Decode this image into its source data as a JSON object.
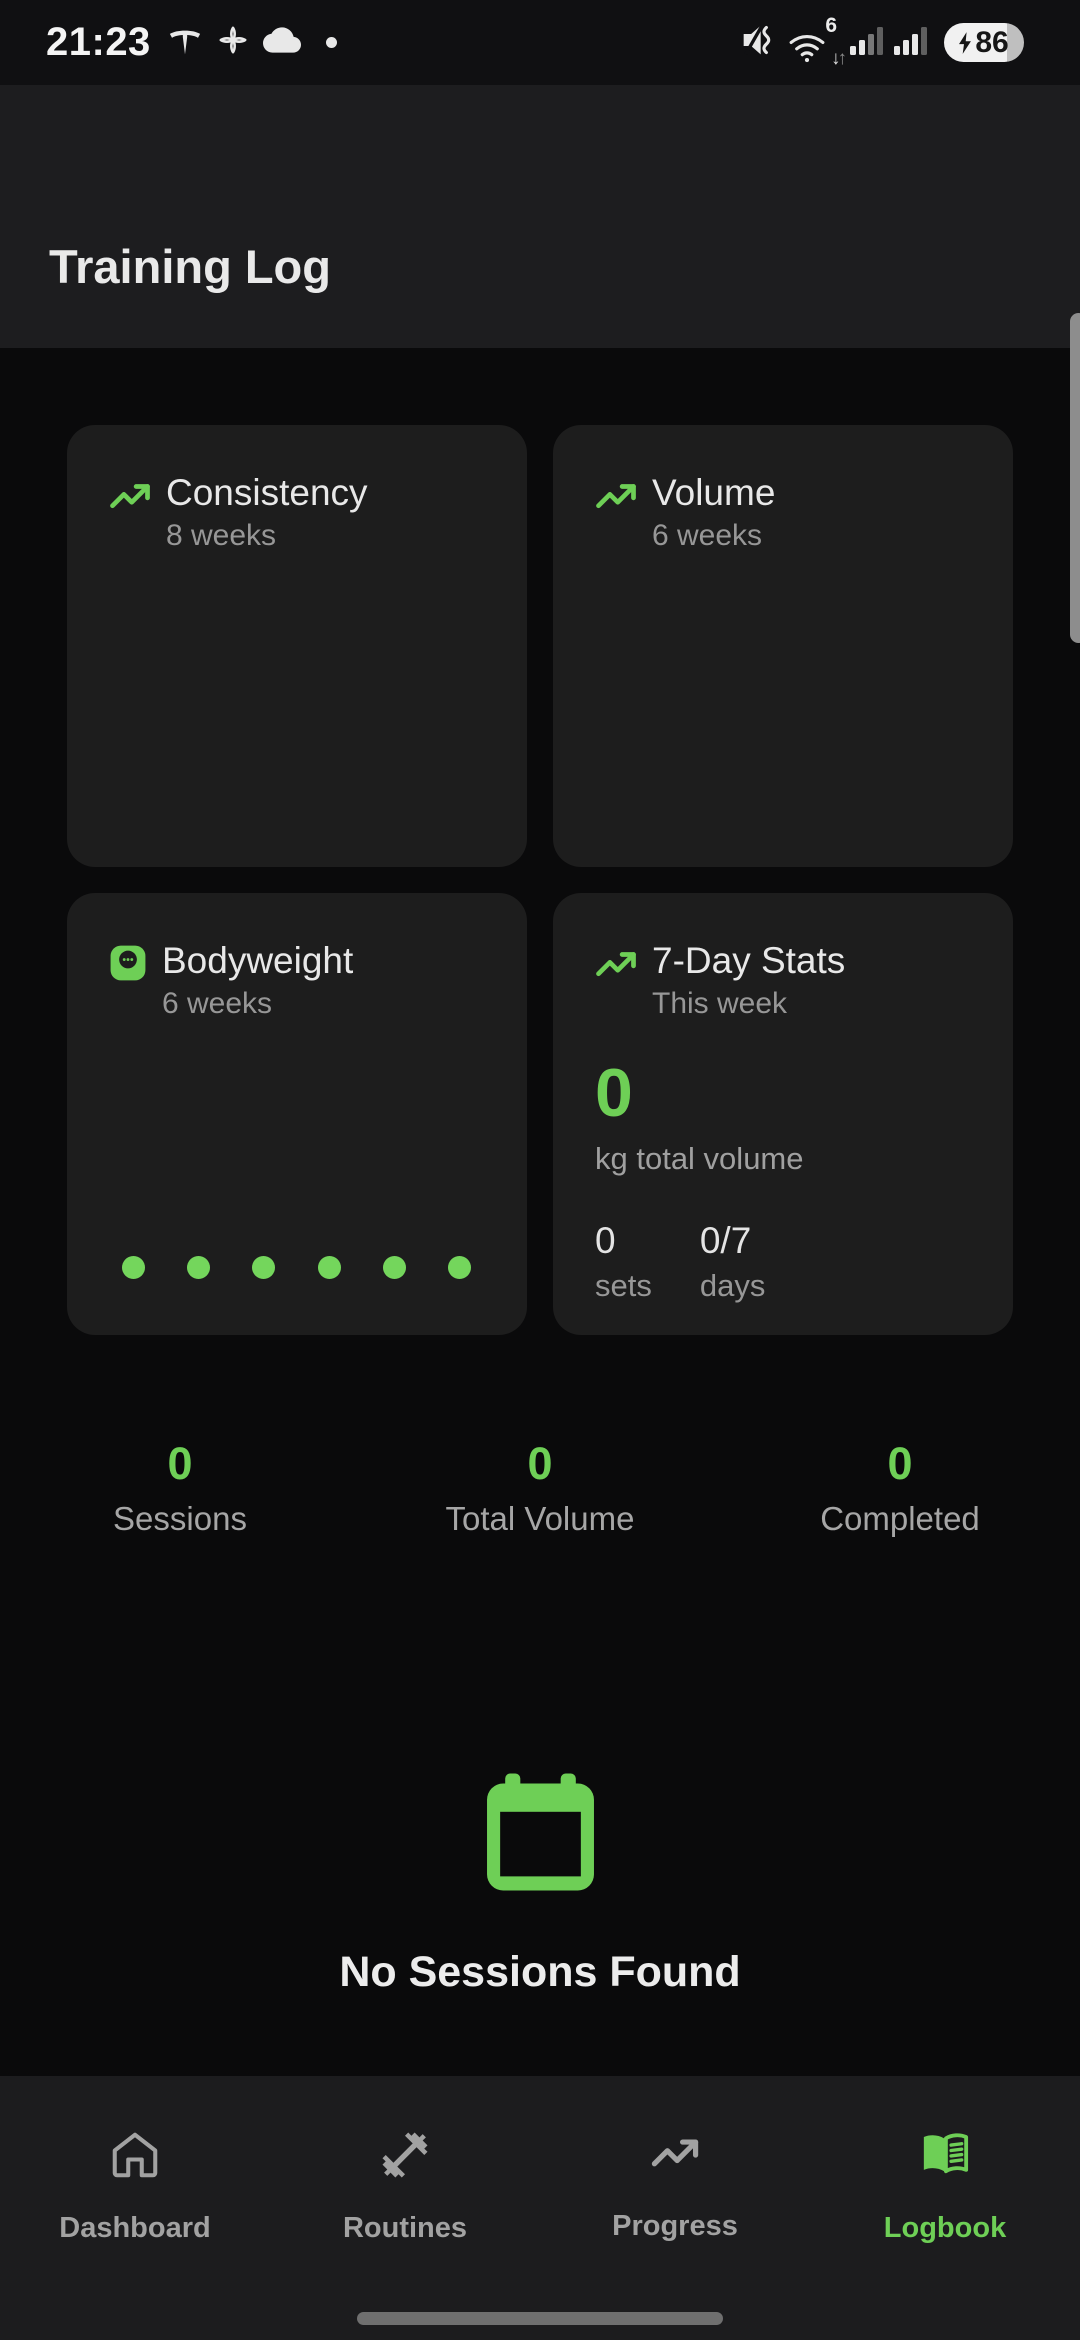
{
  "colors": {
    "accent": "#6ecf56",
    "card_bg": "#1d1d1d",
    "page_bg": "#0a0a0b",
    "bar_bg": "#1d1d1f"
  },
  "status_bar": {
    "time": "21:23",
    "battery_percent": "86",
    "wifi_generation": "6",
    "icons_left": [
      "tesla-icon",
      "fan-icon",
      "cloud-icon",
      "notification-dot"
    ],
    "icons_right": [
      "mute-vibrate-icon",
      "wifi-icon",
      "signal-icon",
      "signal-icon",
      "battery-pill"
    ]
  },
  "header": {
    "title": "Training Log"
  },
  "cards": [
    {
      "icon": "trend-up-icon",
      "title": "Consistency",
      "subtitle": "8 weeks"
    },
    {
      "icon": "trend-up-icon",
      "title": "Volume",
      "subtitle": "6 weeks"
    },
    {
      "icon": "scale-icon",
      "title": "Bodyweight",
      "subtitle": "6 weeks",
      "dots": 6
    },
    {
      "icon": "trend-up-icon",
      "title": "7-Day Stats",
      "subtitle": "This week",
      "primary_value": "0",
      "primary_label": "kg total volume",
      "stats": [
        {
          "value": "0",
          "label": "sets"
        },
        {
          "value": "0/7",
          "label": "days"
        }
      ]
    }
  ],
  "summary": [
    {
      "value": "0",
      "label": "Sessions"
    },
    {
      "value": "0",
      "label": "Total Volume"
    },
    {
      "value": "0",
      "label": "Completed"
    }
  ],
  "empty_state": {
    "icon": "calendar-icon",
    "title": "No Sessions Found"
  },
  "nav": {
    "items": [
      {
        "label": "Dashboard",
        "icon": "home-icon",
        "active": false
      },
      {
        "label": "Routines",
        "icon": "dumbbell-icon",
        "active": false
      },
      {
        "label": "Progress",
        "icon": "trend-up-icon",
        "active": false
      },
      {
        "label": "Logbook",
        "icon": "book-open-icon",
        "active": true
      }
    ]
  }
}
